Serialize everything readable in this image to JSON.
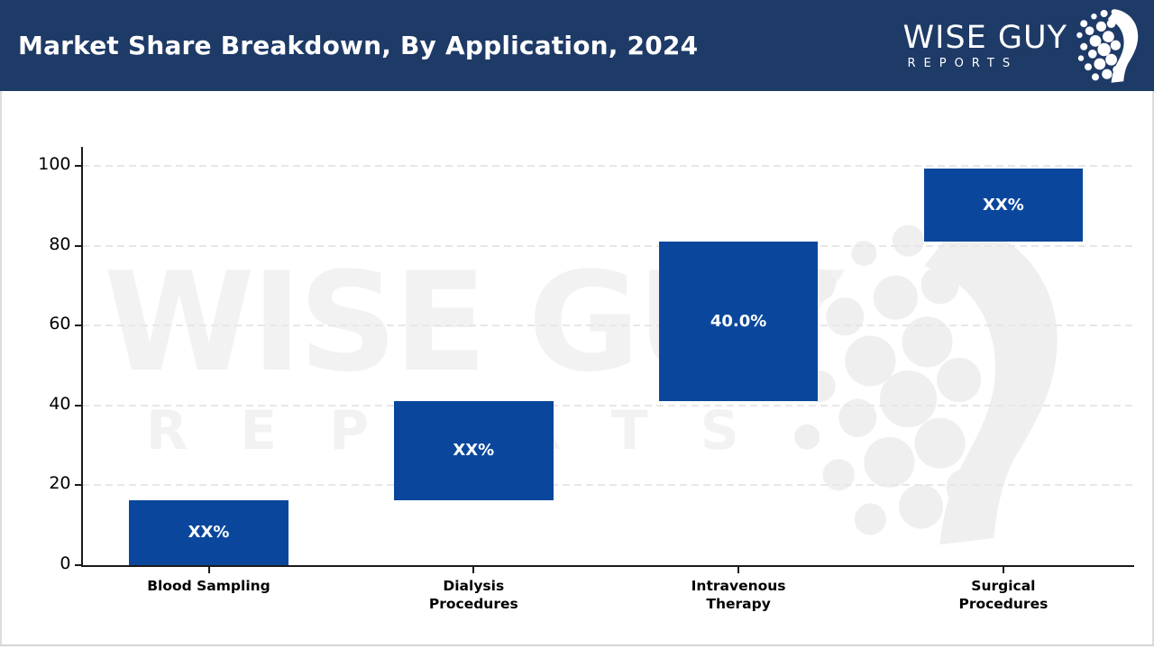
{
  "header": {
    "title": "Market Share Breakdown, By Application, 2024",
    "logo": {
      "line1": "WISE GUY",
      "line2": "REPORTS"
    }
  },
  "watermark": {
    "line1": "WISE GUY",
    "line2": "REPORTS"
  },
  "colors": {
    "header_bg": "#1e3a67",
    "bar_fill": "#0a479c",
    "grid_line": "#e7e7e7",
    "axis": "#1a1a1a",
    "bar_label_text": "#ffffff",
    "watermark": "#f2f2f2"
  },
  "chart_data": {
    "type": "bar",
    "subtype": "waterfall",
    "title": "Market Share Breakdown, By Application, 2024",
    "xlabel": "",
    "ylabel": "",
    "categories": [
      "Blood Sampling",
      "Dialysis Procedures",
      "Intravenous Therapy",
      "Surgical Procedures"
    ],
    "category_label_lines": [
      [
        "Blood Sampling"
      ],
      [
        "Dialysis",
        "Procedures"
      ],
      [
        "Intravenous",
        "Therapy"
      ],
      [
        "Surgical",
        "Procedures"
      ]
    ],
    "series": [
      {
        "name": "Market Share (%)",
        "segments": [
          {
            "category": "Blood Sampling",
            "start": 0,
            "end": 16.3,
            "label": "XX%"
          },
          {
            "category": "Dialysis Procedures",
            "start": 16.3,
            "end": 41.1,
            "label": "XX%"
          },
          {
            "category": "Intravenous Therapy",
            "start": 41.1,
            "end": 81.1,
            "label": "40.0%"
          },
          {
            "category": "Surgical Procedures",
            "start": 81.1,
            "end": 99.5,
            "label": "XX%"
          }
        ]
      }
    ],
    "yticks": [
      0,
      20,
      40,
      60,
      80,
      100
    ],
    "ylim": [
      0,
      105
    ],
    "grid": "horizontal-dashed",
    "legend": "none"
  }
}
